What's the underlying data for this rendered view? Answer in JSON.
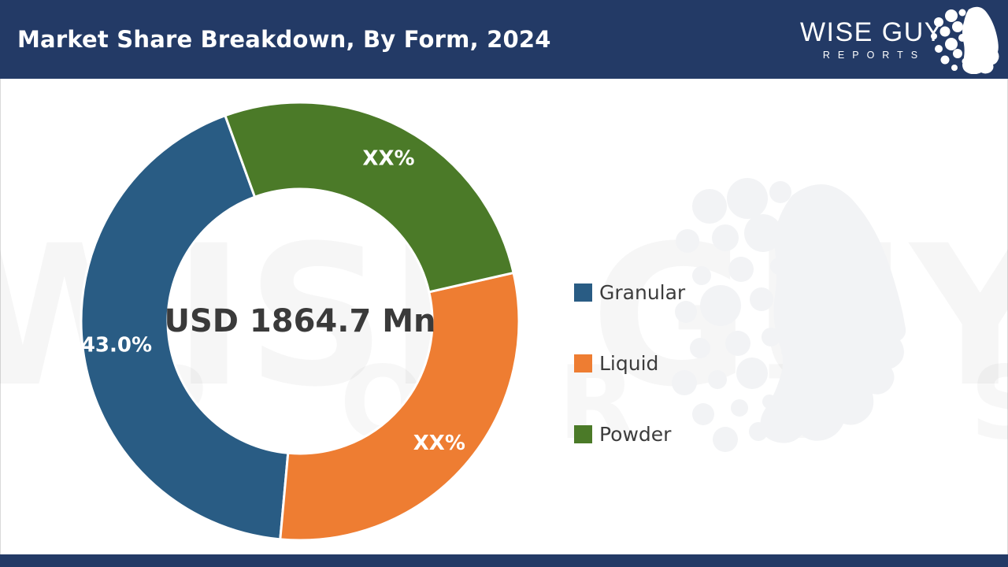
{
  "header": {
    "title": "Market Share Breakdown, By Form, 2024",
    "logo": {
      "line1": "WISE GUY",
      "line2": "REPORTS"
    }
  },
  "chart_data": {
    "type": "pie",
    "subtype": "donut",
    "title": "Market Share Breakdown, By Form, 2024",
    "center_label": "USD 1864.7 Mn",
    "start_angle_deg": 110,
    "counterclockwise": true,
    "legend_position": "right",
    "slices": [
      {
        "name": "Granular",
        "value_pct": 43.0,
        "display_label": "43.0%",
        "color": "#295C84",
        "estimated": false
      },
      {
        "name": "Liquid",
        "value_pct": 30.0,
        "display_label": "XX%",
        "color": "#EE7D32",
        "estimated": true
      },
      {
        "name": "Powder",
        "value_pct": 27.0,
        "display_label": "XX%",
        "color": "#4B7A28",
        "estimated": true
      }
    ]
  },
  "watermark": {
    "big_text": "WISE GUY",
    "sub_text": "R E P O R T S"
  },
  "colors": {
    "header_bar": "#233A66",
    "footer_bar": "#233A66",
    "center_text": "#3A3A3A",
    "slice_border": "#FFFFFF",
    "canvas_border": "#D9D9D9"
  }
}
